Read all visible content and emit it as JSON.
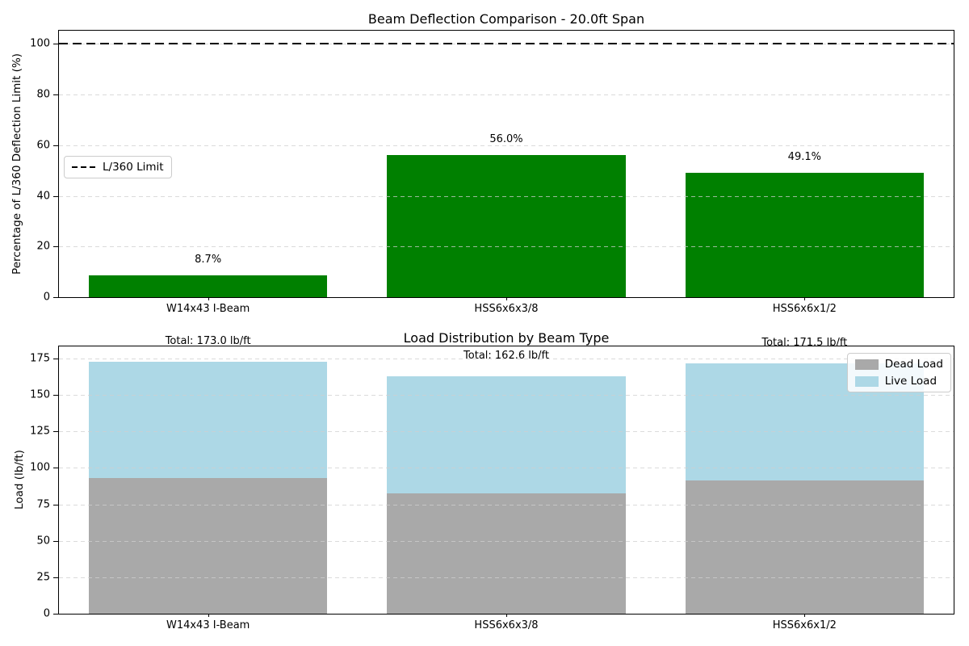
{
  "chart_data": [
    {
      "type": "bar",
      "title": "Beam Deflection Comparison - 20.0ft Span",
      "ylabel": "Percentage of L/360 Deflection Limit (%)",
      "categories": [
        "W14x43 I-Beam",
        "HSS6x6x3/8",
        "HSS6x6x1/2"
      ],
      "values": [
        8.7,
        56.0,
        49.1
      ],
      "bar_labels": [
        "8.7%",
        "56.0%",
        "49.1%"
      ],
      "bar_color": "#008000",
      "yticks": [
        0,
        20,
        40,
        60,
        80,
        100
      ],
      "ylim": [
        0,
        105.2
      ],
      "grid": "horizontal-dashed, drawn above bars",
      "limit_line": {
        "value": 100,
        "style": "dashed",
        "color": "#000000"
      },
      "legend": {
        "position": "center-left",
        "entries": [
          {
            "label": "L/360 Limit",
            "swatch": "dashed-line",
            "color": "#000000"
          }
        ]
      }
    },
    {
      "type": "bar-stacked",
      "title": "Load Distribution by Beam Type",
      "ylabel": "Load (lb/ft)",
      "categories": [
        "W14x43 I-Beam",
        "HSS6x6x3/8",
        "HSS6x6x1/2"
      ],
      "series": [
        {
          "name": "Dead Load",
          "color": "#a9a9a9",
          "values": [
            93.0,
            82.6,
            91.5
          ]
        },
        {
          "name": "Live Load",
          "color": "#add8e6",
          "values": [
            80.0,
            80.0,
            80.0
          ]
        }
      ],
      "totals": [
        173.0,
        162.6,
        171.5
      ],
      "total_labels": [
        "Total: 173.0 lb/ft",
        "Total: 162.6 lb/ft",
        "Total: 171.5 lb/ft"
      ],
      "yticks": [
        0,
        25,
        50,
        75,
        100,
        125,
        150,
        175
      ],
      "ylim": [
        0,
        183.3
      ],
      "grid": "horizontal-dashed, drawn above bars",
      "legend": {
        "position": "upper-right",
        "entries": [
          {
            "label": "Dead Load",
            "swatch": "rect",
            "color": "#a9a9a9"
          },
          {
            "label": "Live Load",
            "swatch": "rect",
            "color": "#add8e6"
          }
        ]
      }
    }
  ]
}
